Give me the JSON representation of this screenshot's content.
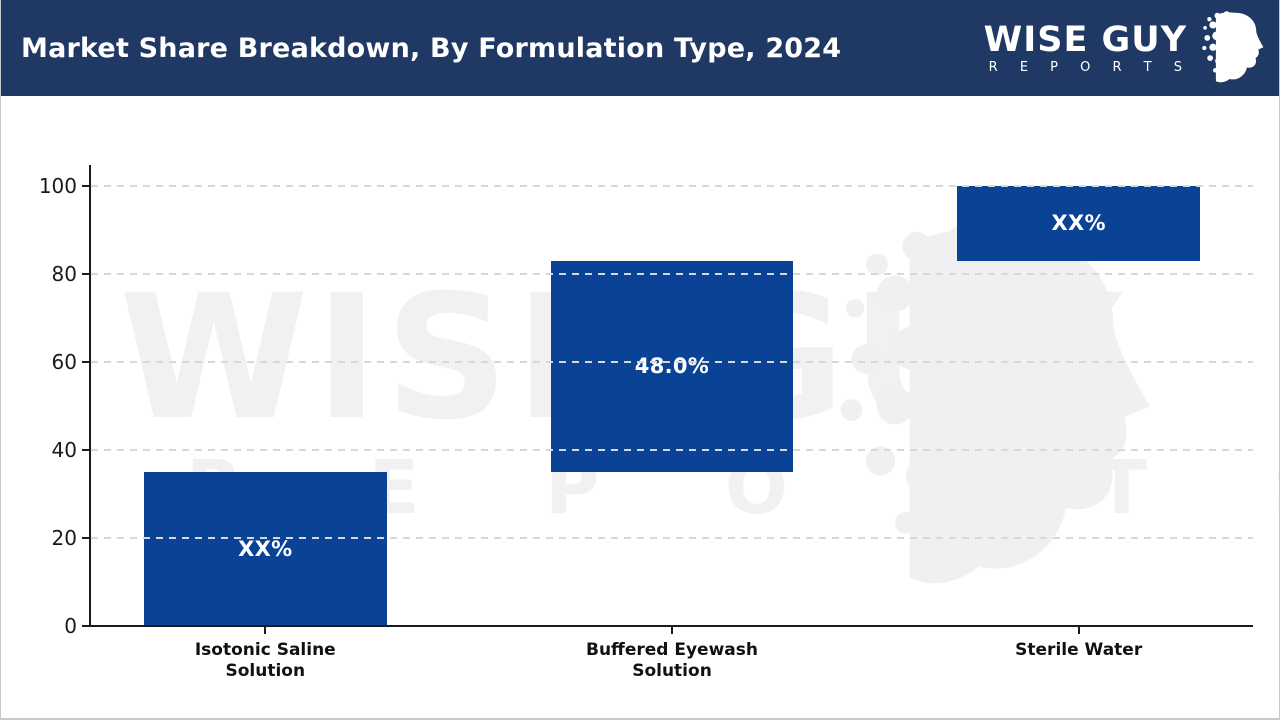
{
  "header": {
    "title": "Market Share Breakdown, By Formulation Type, 2024",
    "logo": {
      "name": "WISE GUY",
      "sub": "R E P O R T S"
    }
  },
  "watermark": {
    "text_top": "WISE GUY",
    "text_bottom": "R E P O R T S"
  },
  "chart_data": {
    "type": "bar",
    "subtype": "waterfall",
    "title": "Market Share Breakdown, By Formulation Type, 2024",
    "categories": [
      "Isotonic Saline\nSolution",
      "Buffered Eyewash\nSolution",
      "Sterile Water"
    ],
    "segments": [
      {
        "category": "Isotonic Saline Solution",
        "from": 0,
        "to": 35,
        "label": "XX%"
      },
      {
        "category": "Buffered Eyewash Solution",
        "from": 35,
        "to": 83,
        "label": "48.0%"
      },
      {
        "category": "Sterile Water",
        "from": 83,
        "to": 100,
        "label": "XX%"
      }
    ],
    "ylim": [
      0,
      100
    ],
    "yticks": [
      0,
      20,
      40,
      60,
      80,
      100
    ],
    "xlabel": "",
    "ylabel": "",
    "grid": "horizontal-dashed, drawn over bars",
    "legend": "none",
    "bar_color": "#0a4296",
    "bar_label_color": "#ffffff",
    "layout": {
      "bar_centers_pct": [
        15,
        50,
        85
      ],
      "bar_width_pct": 20.9
    }
  },
  "colors": {
    "header_bg": "#1f3864",
    "accent_blue": "#0a4296",
    "grid": "#d8d8d8",
    "watermark": "#f1f1f4",
    "axis": "#1a1a1a"
  }
}
